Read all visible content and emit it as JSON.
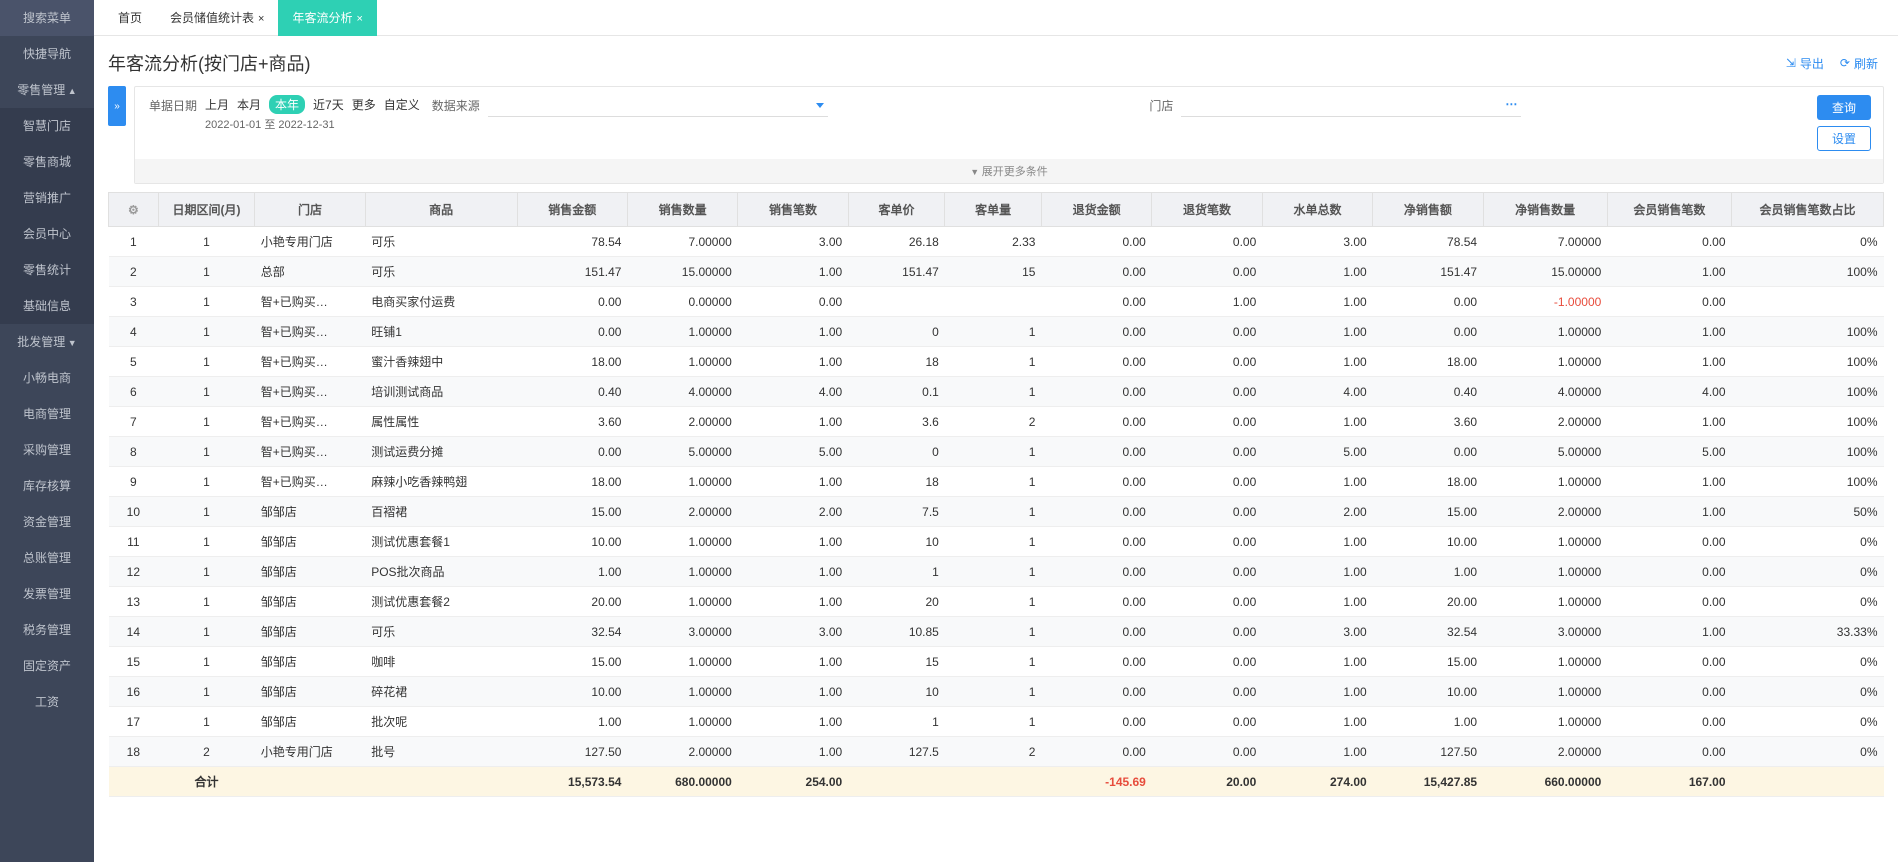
{
  "sidebar": {
    "items": [
      {
        "label": "搜索菜单",
        "class": ""
      },
      {
        "label": "快捷导航",
        "class": ""
      },
      {
        "label": "零售管理",
        "class": "expanded"
      },
      {
        "label": "智慧门店",
        "class": "sub"
      },
      {
        "label": "零售商城",
        "class": "sub"
      },
      {
        "label": "营销推广",
        "class": "sub"
      },
      {
        "label": "会员中心",
        "class": "sub"
      },
      {
        "label": "零售统计",
        "class": "sub"
      },
      {
        "label": "基础信息",
        "class": "sub"
      },
      {
        "label": "批发管理",
        "class": "collapsed"
      },
      {
        "label": "小畅电商",
        "class": ""
      },
      {
        "label": "电商管理",
        "class": ""
      },
      {
        "label": "采购管理",
        "class": ""
      },
      {
        "label": "库存核算",
        "class": ""
      },
      {
        "label": "资金管理",
        "class": ""
      },
      {
        "label": "总账管理",
        "class": ""
      },
      {
        "label": "发票管理",
        "class": ""
      },
      {
        "label": "税务管理",
        "class": ""
      },
      {
        "label": "固定资产",
        "class": ""
      },
      {
        "label": "工资",
        "class": ""
      }
    ]
  },
  "tabs": [
    {
      "label": "首页",
      "closable": false,
      "active": false
    },
    {
      "label": "会员储值统计表",
      "closable": true,
      "active": false
    },
    {
      "label": "年客流分析",
      "closable": true,
      "active": true
    }
  ],
  "page": {
    "title": "年客流分析(按门店+商品)",
    "export_label": "导出",
    "refresh_label": "刷新"
  },
  "filters": {
    "date_label": "单据日期",
    "shortcuts": [
      "上月",
      "本月",
      "本年",
      "近7天",
      "更多",
      "自定义"
    ],
    "active_shortcut": "本年",
    "date_range": "2022-01-01 至 2022-12-31",
    "source_label": "数据来源",
    "store_label": "门店",
    "query_btn": "查询",
    "settings_btn": "设置",
    "expand_label": "展开更多条件"
  },
  "table": {
    "columns": [
      "日期区间(月)",
      "门店",
      "商品",
      "销售金额",
      "销售数量",
      "销售笔数",
      "客单价",
      "客单量",
      "退货金额",
      "退货笔数",
      "水单总数",
      "净销售额",
      "净销售数量",
      "会员销售笔数",
      "会员销售笔数占比"
    ],
    "col_align": [
      "ctr",
      "txt",
      "txt",
      "num",
      "num",
      "num",
      "num",
      "num",
      "num",
      "num",
      "num",
      "num",
      "num",
      "num",
      "num"
    ],
    "col_widths": [
      "70px",
      "80px",
      "110px",
      "80px",
      "80px",
      "80px",
      "70px",
      "70px",
      "80px",
      "80px",
      "80px",
      "80px",
      "90px",
      "90px",
      "110px"
    ],
    "rows": [
      {
        "n": 1,
        "cells": [
          "1",
          "小艳专用门店",
          "可乐",
          "78.54",
          "7.00000",
          "3.00",
          "26.18",
          "2.33",
          "0.00",
          "0.00",
          "3.00",
          "78.54",
          "7.00000",
          "0.00",
          "0%"
        ]
      },
      {
        "n": 2,
        "cells": [
          "1",
          "总部",
          "可乐",
          "151.47",
          "15.00000",
          "1.00",
          "151.47",
          "15",
          "0.00",
          "0.00",
          "1.00",
          "151.47",
          "15.00000",
          "1.00",
          "100%"
        ]
      },
      {
        "n": 3,
        "cells": [
          "1",
          "智+已购买…",
          "电商买家付运费",
          "0.00",
          "0.00000",
          "0.00",
          "",
          "",
          "0.00",
          "1.00",
          "1.00",
          "0.00",
          "-1.00000",
          "0.00",
          ""
        ],
        "neg": [
          12
        ]
      },
      {
        "n": 4,
        "cells": [
          "1",
          "智+已购买…",
          "旺铺1",
          "0.00",
          "1.00000",
          "1.00",
          "0",
          "1",
          "0.00",
          "0.00",
          "1.00",
          "0.00",
          "1.00000",
          "1.00",
          "100%"
        ]
      },
      {
        "n": 5,
        "cells": [
          "1",
          "智+已购买…",
          "蜜汁香辣翅中",
          "18.00",
          "1.00000",
          "1.00",
          "18",
          "1",
          "0.00",
          "0.00",
          "1.00",
          "18.00",
          "1.00000",
          "1.00",
          "100%"
        ]
      },
      {
        "n": 6,
        "cells": [
          "1",
          "智+已购买…",
          "培训测试商品",
          "0.40",
          "4.00000",
          "4.00",
          "0.1",
          "1",
          "0.00",
          "0.00",
          "4.00",
          "0.40",
          "4.00000",
          "4.00",
          "100%"
        ]
      },
      {
        "n": 7,
        "cells": [
          "1",
          "智+已购买…",
          "属性属性",
          "3.60",
          "2.00000",
          "1.00",
          "3.6",
          "2",
          "0.00",
          "0.00",
          "1.00",
          "3.60",
          "2.00000",
          "1.00",
          "100%"
        ]
      },
      {
        "n": 8,
        "cells": [
          "1",
          "智+已购买…",
          "测试运费分摊",
          "0.00",
          "5.00000",
          "5.00",
          "0",
          "1",
          "0.00",
          "0.00",
          "5.00",
          "0.00",
          "5.00000",
          "5.00",
          "100%"
        ]
      },
      {
        "n": 9,
        "cells": [
          "1",
          "智+已购买…",
          "麻辣小吃香辣鸭翅",
          "18.00",
          "1.00000",
          "1.00",
          "18",
          "1",
          "0.00",
          "0.00",
          "1.00",
          "18.00",
          "1.00000",
          "1.00",
          "100%"
        ]
      },
      {
        "n": 10,
        "cells": [
          "1",
          "邹邹店",
          "百褶裙",
          "15.00",
          "2.00000",
          "2.00",
          "7.5",
          "1",
          "0.00",
          "0.00",
          "2.00",
          "15.00",
          "2.00000",
          "1.00",
          "50%"
        ]
      },
      {
        "n": 11,
        "cells": [
          "1",
          "邹邹店",
          "测试优惠套餐1",
          "10.00",
          "1.00000",
          "1.00",
          "10",
          "1",
          "0.00",
          "0.00",
          "1.00",
          "10.00",
          "1.00000",
          "0.00",
          "0%"
        ]
      },
      {
        "n": 12,
        "cells": [
          "1",
          "邹邹店",
          "POS批次商品",
          "1.00",
          "1.00000",
          "1.00",
          "1",
          "1",
          "0.00",
          "0.00",
          "1.00",
          "1.00",
          "1.00000",
          "0.00",
          "0%"
        ]
      },
      {
        "n": 13,
        "cells": [
          "1",
          "邹邹店",
          "测试优惠套餐2",
          "20.00",
          "1.00000",
          "1.00",
          "20",
          "1",
          "0.00",
          "0.00",
          "1.00",
          "20.00",
          "1.00000",
          "0.00",
          "0%"
        ]
      },
      {
        "n": 14,
        "cells": [
          "1",
          "邹邹店",
          "可乐",
          "32.54",
          "3.00000",
          "3.00",
          "10.85",
          "1",
          "0.00",
          "0.00",
          "3.00",
          "32.54",
          "3.00000",
          "1.00",
          "33.33%"
        ]
      },
      {
        "n": 15,
        "cells": [
          "1",
          "邹邹店",
          "咖啡",
          "15.00",
          "1.00000",
          "1.00",
          "15",
          "1",
          "0.00",
          "0.00",
          "1.00",
          "15.00",
          "1.00000",
          "0.00",
          "0%"
        ]
      },
      {
        "n": 16,
        "cells": [
          "1",
          "邹邹店",
          "碎花裙",
          "10.00",
          "1.00000",
          "1.00",
          "10",
          "1",
          "0.00",
          "0.00",
          "1.00",
          "10.00",
          "1.00000",
          "0.00",
          "0%"
        ]
      },
      {
        "n": 17,
        "cells": [
          "1",
          "邹邹店",
          "批次呢",
          "1.00",
          "1.00000",
          "1.00",
          "1",
          "1",
          "0.00",
          "0.00",
          "1.00",
          "1.00",
          "1.00000",
          "0.00",
          "0%"
        ]
      },
      {
        "n": 18,
        "cells": [
          "2",
          "小艳专用门店",
          "批号",
          "127.50",
          "2.00000",
          "1.00",
          "127.5",
          "2",
          "0.00",
          "0.00",
          "1.00",
          "127.50",
          "2.00000",
          "0.00",
          "0%"
        ]
      }
    ],
    "totals_label": "合计",
    "totals": [
      "",
      "",
      "",
      "15,573.54",
      "680.00000",
      "254.00",
      "",
      "",
      "-145.69",
      "20.00",
      "274.00",
      "15,427.85",
      "660.00000",
      "167.00",
      ""
    ],
    "totals_neg": [
      8
    ]
  }
}
